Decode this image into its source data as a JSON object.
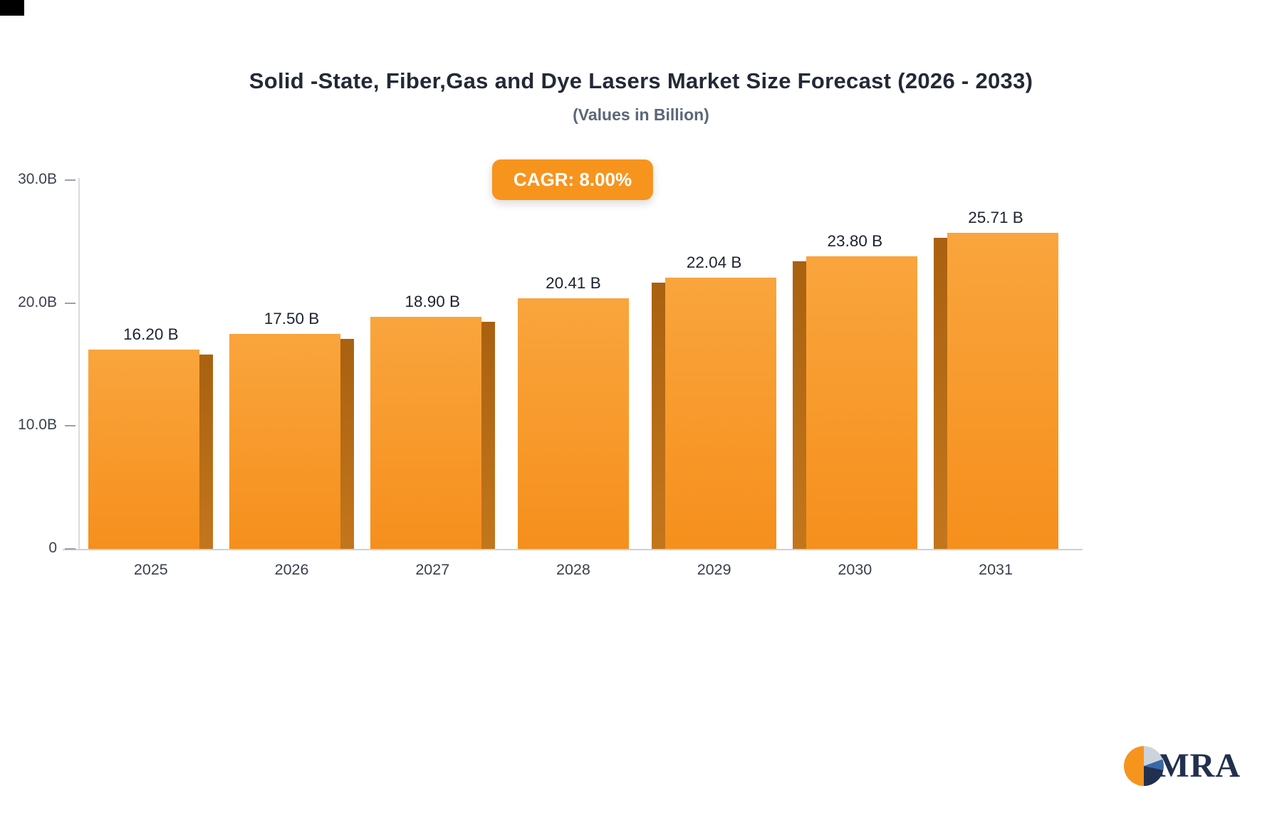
{
  "chart_data": {
    "type": "bar",
    "title": "Solid -State, Fiber,Gas and Dye Lasers Market Size Forecast (2026 - 2033)",
    "subtitle": "(Values in Billion)",
    "annotation": "CAGR: 8.00%",
    "categories": [
      "2025",
      "2026",
      "2027",
      "2028",
      "2029",
      "2030",
      "2031"
    ],
    "values": [
      16.2,
      17.5,
      18.9,
      20.41,
      22.04,
      23.8,
      25.71
    ],
    "value_labels": [
      "16.20 B",
      "17.50 B",
      "18.90 B",
      "20.41 B",
      "22.04 B",
      "23.80 B",
      "25.71 B"
    ],
    "xlabel": "",
    "ylabel": "",
    "ylim": [
      0,
      30
    ],
    "yticks": [
      {
        "value": 0,
        "label": "0"
      },
      {
        "value": 10,
        "label": "10.0B"
      },
      {
        "value": 20,
        "label": "20.0B"
      },
      {
        "value": 30,
        "label": "30.0B"
      }
    ],
    "grid": false,
    "legend": "none",
    "bar_color": "#F7941E",
    "bar_side_color": "#B96D15"
  },
  "logo": {
    "text": "MRA"
  },
  "colors": {
    "accent_orange": "#F7941E",
    "badge_bg": "#F7941E",
    "badge_text": "#FFFFFF",
    "logo_navy": "#22304F",
    "axis_text": "#3A4150",
    "title_text": "#232936"
  }
}
